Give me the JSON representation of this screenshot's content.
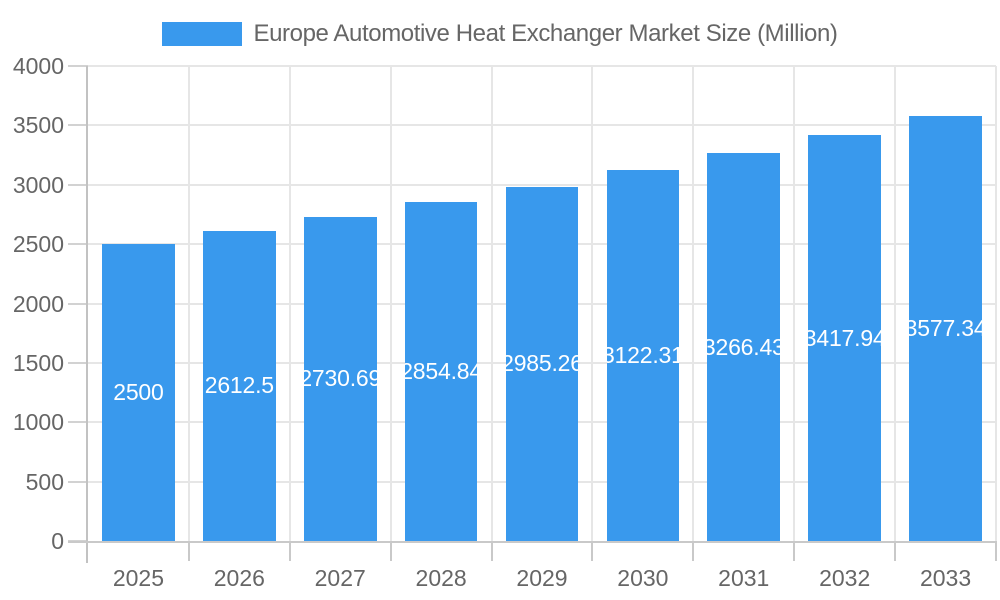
{
  "legend": {
    "label": "Europe Automotive Heat Exchanger Market Size (Million)"
  },
  "colors": {
    "bar": "#3999ed",
    "axis_text": "#666666",
    "grid": "#e6e6e6",
    "axis_line": "#c9c9c9",
    "value_label": "#ffffff",
    "background": "#ffffff"
  },
  "chart_data": {
    "type": "bar",
    "title": "Europe Automotive Heat Exchanger Market Size (Million)",
    "categories": [
      "2025",
      "2026",
      "2027",
      "2028",
      "2029",
      "2030",
      "2031",
      "2032",
      "2033"
    ],
    "values": [
      2500,
      2612.5,
      2730.69,
      2854.84,
      2985.26,
      3122.31,
      3266.43,
      3417.94,
      3577.34
    ],
    "value_labels": [
      "2500",
      "2612.5",
      "2730.69",
      "2854.84",
      "2985.26",
      "3122.31",
      "3266.43",
      "3417.94",
      "3577.34"
    ],
    "xlabel": "",
    "ylabel": "",
    "ylim": [
      0,
      4000
    ],
    "yticks": [
      0,
      500,
      1000,
      1500,
      2000,
      2500,
      3000,
      3500,
      4000
    ],
    "grid": true,
    "legend_position": "top",
    "value_labels_position": "center",
    "bar_width_fraction": 0.72
  }
}
